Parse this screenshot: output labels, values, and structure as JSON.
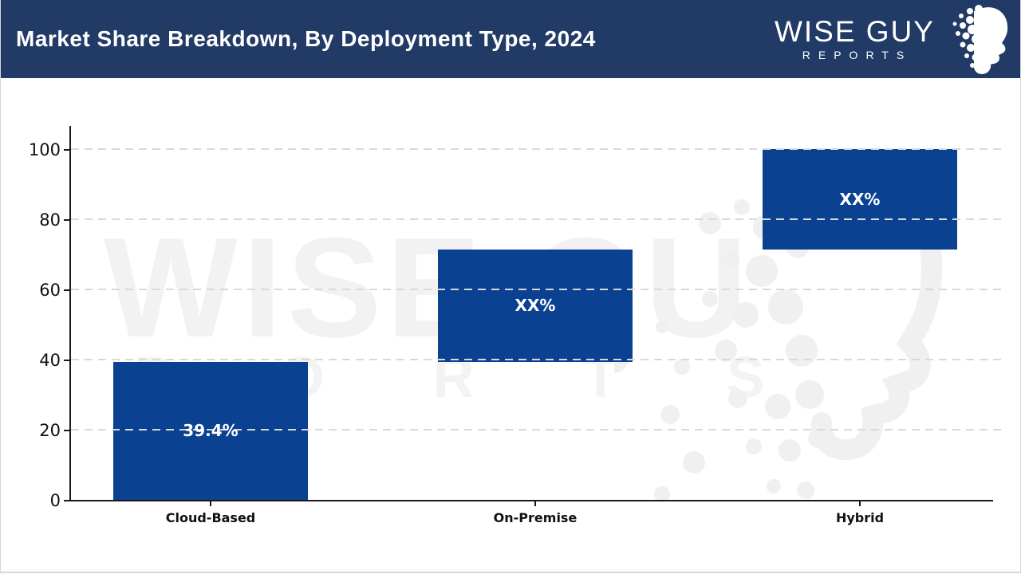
{
  "header": {
    "title": "Market Share Breakdown, By Deployment Type, 2024",
    "logo": {
      "line1": "WISE GUY",
      "line2": "REPORTS"
    }
  },
  "watermark": {
    "line1": "WISE GU",
    "line2": "P O R T S"
  },
  "colors": {
    "header_bg": "#213a66",
    "bar": "#0a4191",
    "bar_label": "#ffffff",
    "grid": "#d9d9d9",
    "axis": "#1a1a1a",
    "watermark": "#f2f2f2"
  },
  "chart_data": {
    "type": "bar",
    "subtype": "floating-waterfall",
    "title": "Market Share Breakdown, By Deployment Type, 2024",
    "categories": [
      "Cloud-Based",
      "On-Premise",
      "Hybrid"
    ],
    "segments": [
      {
        "category": "Cloud-Based",
        "start": 0,
        "end": 39.4,
        "label": "39.4%"
      },
      {
        "category": "On-Premise",
        "start": 39.4,
        "end": 71.4,
        "label": "XX%"
      },
      {
        "category": "Hybrid",
        "start": 71.4,
        "end": 100,
        "label": "XX%"
      }
    ],
    "xlabel": "",
    "ylabel": "",
    "ylim": [
      0,
      106
    ],
    "yticks": [
      0,
      20,
      40,
      60,
      80,
      100
    ],
    "grid": "horizontal-dashed",
    "grid_above_bars": true,
    "legend": "none"
  }
}
